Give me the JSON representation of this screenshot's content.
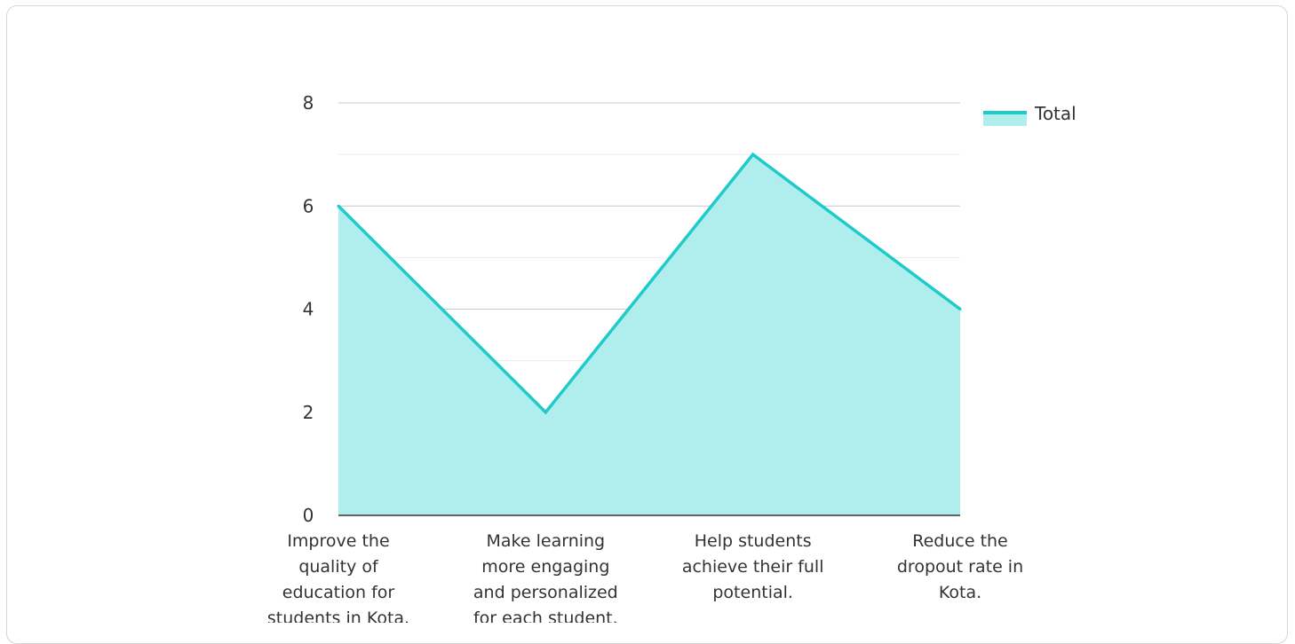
{
  "chart_data": {
    "type": "area",
    "categories": [
      [
        "Improve the",
        "quality of",
        "education for",
        "students in Kota."
      ],
      [
        "Make learning",
        "more engaging",
        "and personalized",
        "for each student."
      ],
      [
        "Help students",
        "achieve their full",
        "potential."
      ],
      [
        "Reduce the",
        "dropout rate in",
        "Kota."
      ]
    ],
    "series": [
      {
        "name": "Total",
        "values": [
          6,
          2,
          7,
          4
        ]
      }
    ],
    "ylim": [
      0,
      8
    ],
    "yticks": [
      0,
      2,
      4,
      6,
      8
    ],
    "grid": true,
    "legend_position": "right",
    "colors": {
      "line": "#1ecbc9",
      "fill": "#b0eeee",
      "grid_major": "#c8c8c8",
      "grid_minor": "#ebebeb",
      "axis": "#333333"
    }
  }
}
